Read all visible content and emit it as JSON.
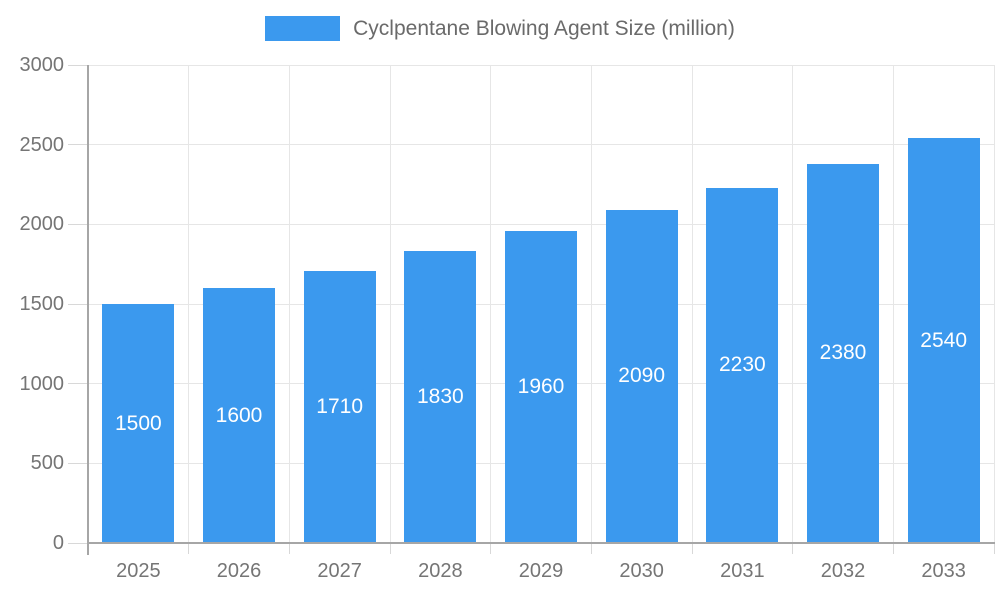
{
  "legend": {
    "label": "Cyclpentane Blowing Agent Size (million)"
  },
  "colors": {
    "bar": "#3B99EE",
    "grid": "#E6E6E6",
    "tick": "#D8D8D8",
    "axis": "#A6A6A6",
    "text": "#757575",
    "bar_label": "#FFFFFF",
    "background": "#FFFFFF"
  },
  "chart_data": {
    "type": "bar",
    "title": "Cyclpentane Blowing Agent Size (million)",
    "categories": [
      "2025",
      "2026",
      "2027",
      "2028",
      "2029",
      "2030",
      "2031",
      "2032",
      "2033"
    ],
    "series": [
      {
        "name": "Cyclpentane Blowing Agent Size (million)",
        "values": [
          1500,
          1600,
          1710,
          1830,
          1960,
          2090,
          2230,
          2380,
          2540
        ]
      }
    ],
    "value_labels": [
      "1500",
      "1600",
      "1710",
      "1830",
      "1960",
      "2090",
      "2230",
      "2380",
      "2540"
    ],
    "value_labels_position": "inside-center",
    "xlabel": "",
    "ylabel": "",
    "ylim": [
      0,
      3000
    ],
    "yticks": [
      0,
      500,
      1000,
      1500,
      2000,
      2500,
      3000
    ],
    "grid": true,
    "legend_position": "top"
  }
}
